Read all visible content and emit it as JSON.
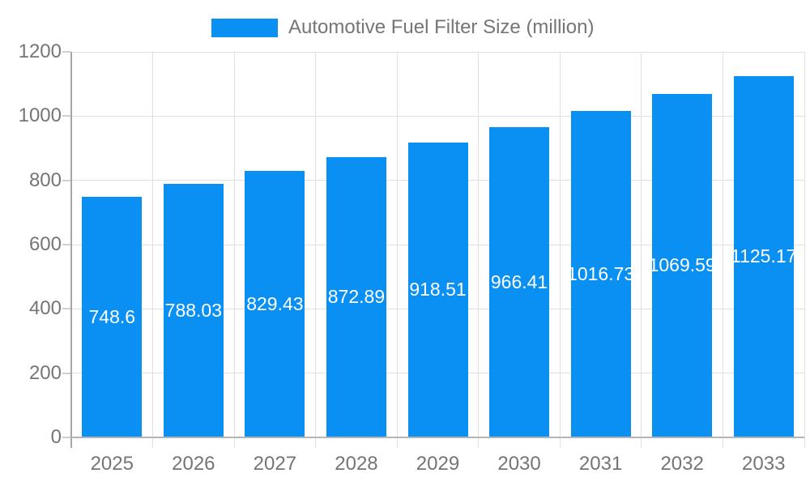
{
  "legend": {
    "label": "Automotive Fuel Filter Size (million)"
  },
  "chart_data": {
    "type": "bar",
    "title": "Automotive Fuel Filter Size (million)",
    "categories": [
      "2025",
      "2026",
      "2027",
      "2028",
      "2029",
      "2030",
      "2031",
      "2032",
      "2033"
    ],
    "values": [
      748.6,
      788.03,
      829.43,
      872.89,
      918.51,
      966.41,
      1016.73,
      1069.59,
      1125.17
    ],
    "value_labels": [
      "748.6",
      "788.03",
      "829.43",
      "872.89",
      "918.51",
      "966.41",
      "1016.73",
      "1069.59",
      "1125.17"
    ],
    "xlabel": "",
    "ylabel": "",
    "ylim": [
      0,
      1200
    ],
    "yticks": [
      0,
      200,
      400,
      600,
      800,
      1000,
      1200
    ],
    "grid": true,
    "legend_position": "top",
    "series_color": "#0a90f2",
    "value_label_color": "#ffffff"
  }
}
